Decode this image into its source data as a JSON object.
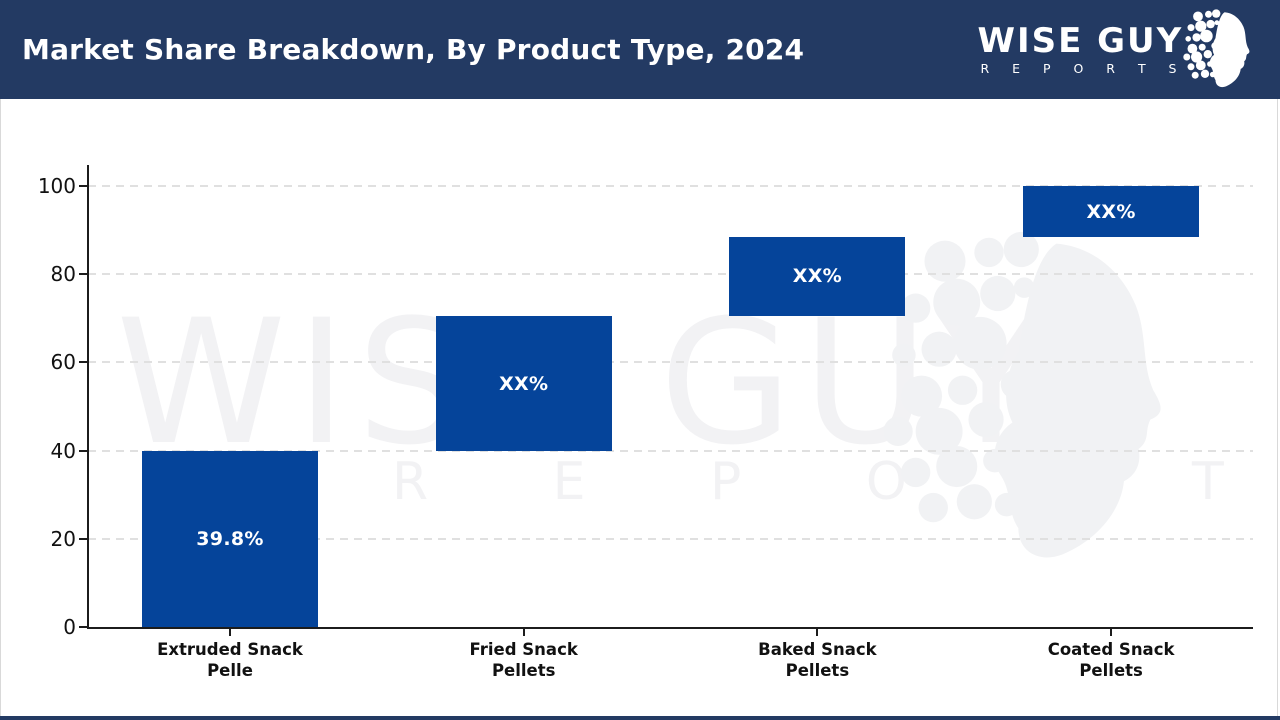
{
  "header": {
    "title": "Market Share Breakdown, By Product Type, 2024",
    "logo_main": "WISE GUY",
    "logo_sub": "R E P O R T S"
  },
  "watermark": {
    "main": "WISE GUY",
    "sub": "R E P O R T S"
  },
  "colors": {
    "header_navy": "#233a63",
    "bar_blue": "#05449a",
    "grid_gray": "#e0e0e0",
    "axis_black": "#1c1c1c",
    "watermark_gray": "#f2f2f4",
    "label_white": "#ffffff"
  },
  "chart_data": {
    "type": "bar",
    "subtype": "waterfall",
    "title": "Market Share Breakdown, By Product Type, 2024",
    "categories": [
      [
        "Extruded Snack",
        "Pelle"
      ],
      [
        "Fried Snack",
        "Pellets"
      ],
      [
        "Baked Snack",
        "Pellets"
      ],
      [
        "Coated Snack",
        "Pellets"
      ]
    ],
    "segments": [
      {
        "start": 0,
        "end": 39.8,
        "label": "39.8%"
      },
      {
        "start": 39.8,
        "end": 70.6,
        "label": "XX%"
      },
      {
        "start": 70.6,
        "end": 88.4,
        "label": "XX%"
      },
      {
        "start": 88.4,
        "end": 100,
        "label": "XX%"
      }
    ],
    "xlabel": "",
    "ylabel": "",
    "ylim": [
      0,
      104.8
    ],
    "yticks": [
      0,
      20,
      40,
      60,
      80,
      100
    ],
    "grid": "dashed-horizontal",
    "legend": "none"
  }
}
